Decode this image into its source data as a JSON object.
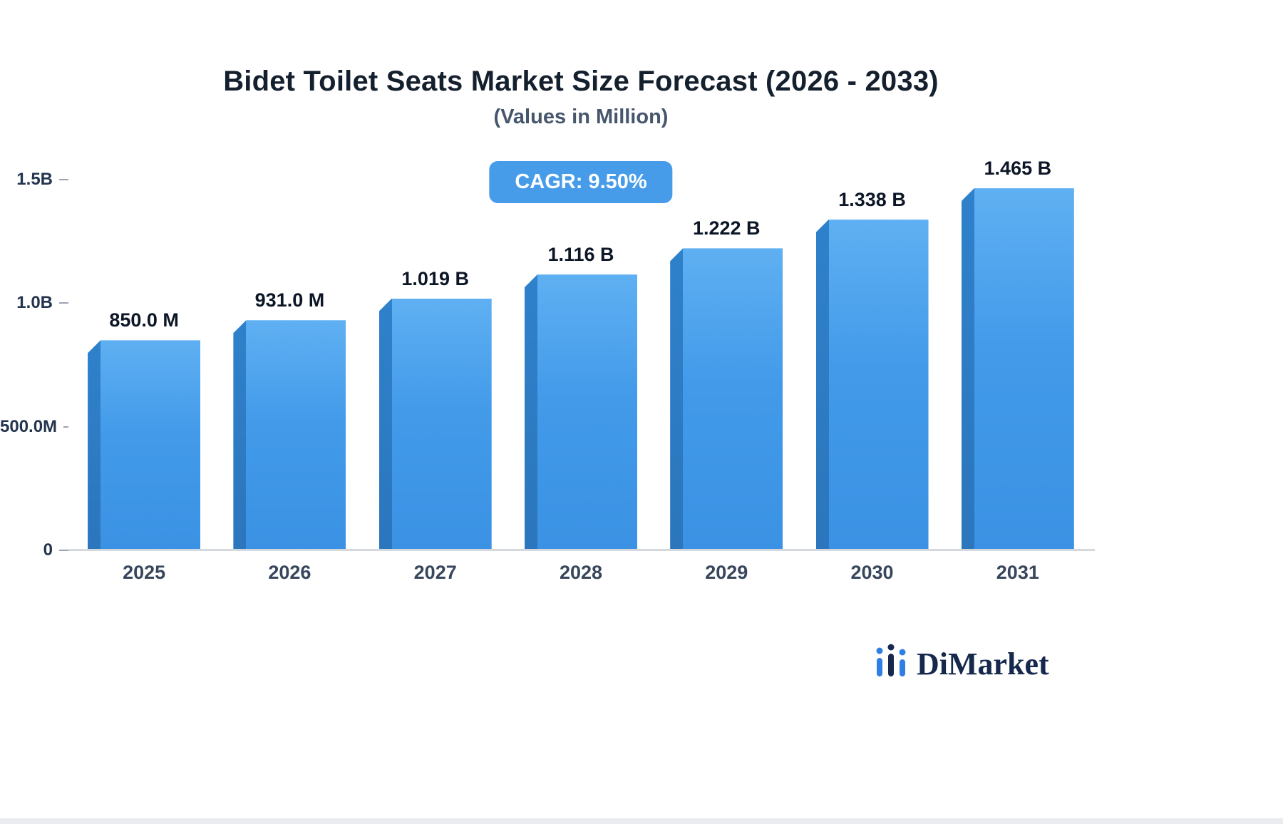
{
  "header": {
    "title": "Bidet Toilet Seats Market Size Forecast (2026 - 2033)",
    "subtitle": "(Values in Million)"
  },
  "badge": {
    "label": "CAGR: 9.50%"
  },
  "logo": {
    "text": "DiMarket"
  },
  "chart_data": {
    "type": "bar",
    "title": "Bidet Toilet Seats Market Size Forecast (2026 - 2033)",
    "subtitle": "(Values in Million)",
    "unit": "Million USD",
    "categories": [
      "2025",
      "2026",
      "2027",
      "2028",
      "2029",
      "2030",
      "2031"
    ],
    "values": [
      850,
      931,
      1019,
      1116,
      1222,
      1338,
      1465
    ],
    "value_labels": [
      "850.0 M",
      "931.0 M",
      "1.019 B",
      "1.116 B",
      "1.222 B",
      "1.338 B",
      "1.465 B"
    ],
    "ylim": [
      0,
      1500
    ],
    "yticks": [
      {
        "value": 0,
        "label": "0"
      },
      {
        "value": 500,
        "label": "500.0M"
      },
      {
        "value": 1000,
        "label": "1.0B"
      },
      {
        "value": 1500,
        "label": "1.5B"
      }
    ],
    "grid": false,
    "legend": "none",
    "colors": {
      "bar_main": "#429ae9",
      "bar_light": "#5fb0f2",
      "bar_side_dark": "#2b76bc",
      "badge_bg": "#469ce9",
      "axis": "#d5d9dd",
      "logo_navy": "#16294d",
      "logo_blue": "#2e7fe3"
    }
  }
}
